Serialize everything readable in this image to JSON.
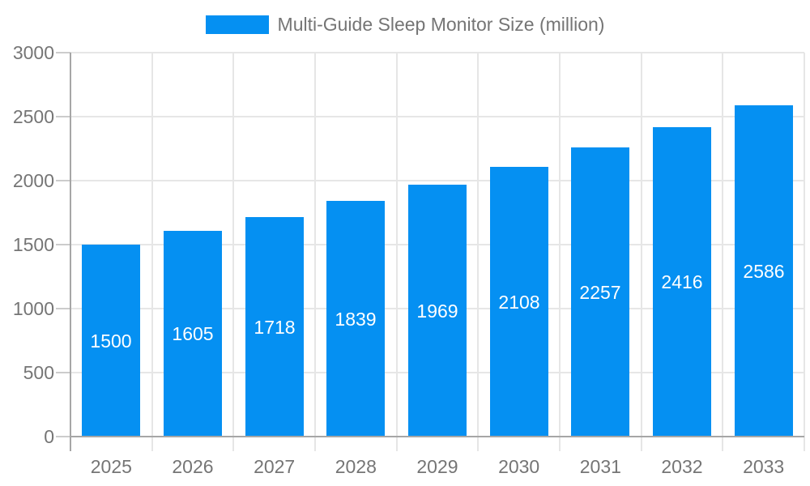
{
  "legend": {
    "label": "Multi-Guide Sleep Monitor Size (million)"
  },
  "colors": {
    "bar": "#0590f2",
    "axis_line": "#a6a6a6",
    "gridline": "#e6e6e6",
    "y_tick": "#cccccc",
    "x_tick": "#e6e6e6",
    "axis_text": "#757575",
    "value_label_text": "#ffffff",
    "background": "#ffffff"
  },
  "chart_data": {
    "type": "bar",
    "title": "Multi-Guide Sleep Monitor Size (million)",
    "series_name": "Multi-Guide Sleep Monitor Size (million)",
    "categories": [
      "2025",
      "2026",
      "2027",
      "2028",
      "2029",
      "2030",
      "2031",
      "2032",
      "2033"
    ],
    "values": [
      1500,
      1605,
      1718,
      1839,
      1969,
      2108,
      2257,
      2416,
      2586
    ],
    "bar_labels": [
      1500,
      1605,
      1718,
      1839,
      1969,
      2108,
      2257,
      2416,
      2586
    ],
    "xlabel": "",
    "ylabel": "",
    "ylim": [
      0,
      3000
    ],
    "ytick_step": 500,
    "ytick_labels": [
      "0",
      "500",
      "1000",
      "1500",
      "2000",
      "2500",
      "3000"
    ],
    "grid": true,
    "legend_position": "top"
  }
}
